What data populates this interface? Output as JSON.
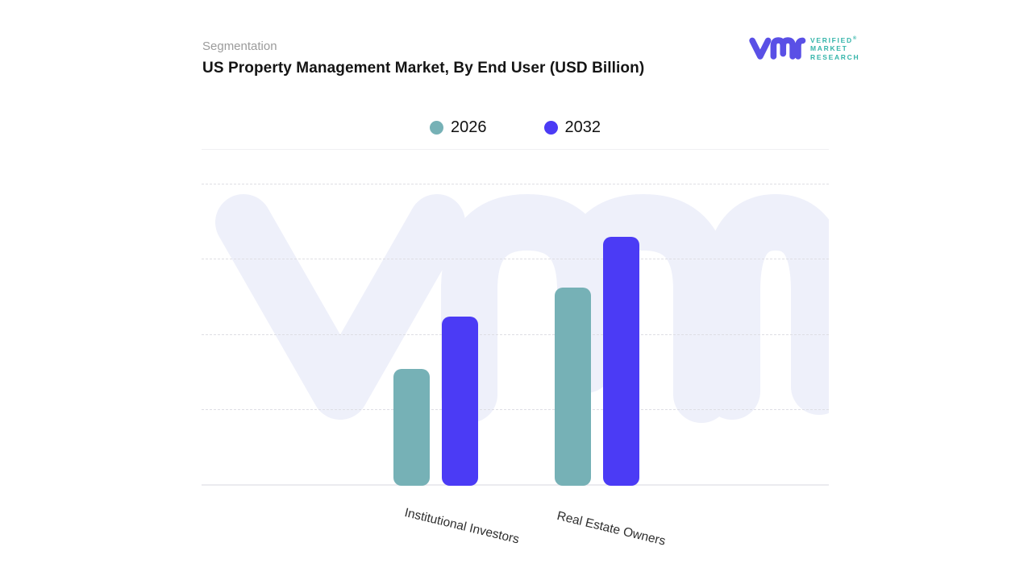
{
  "header": {
    "kicker": "Segmentation",
    "title": "US Property Management Market, By End User (USD Billion)"
  },
  "logo": {
    "brand_line_1": "VERIFIED",
    "brand_line_2": "MARKET",
    "brand_line_3": "RESEARCH",
    "registered_mark": "®",
    "mark_color": "#5a50e6",
    "text_color": "#35b5aa"
  },
  "chart_data": {
    "type": "bar",
    "title": "US Property Management Market, By End User (USD Billion)",
    "categories": [
      "Institutional Investors",
      "Real Estate Owners"
    ],
    "series": [
      {
        "name": "2026",
        "color": "#76b1b6",
        "values": [
          1.55,
          2.62
        ]
      },
      {
        "name": "2032",
        "color": "#4b3bf5",
        "values": [
          2.24,
          3.3
        ]
      }
    ],
    "xlabel": "",
    "ylabel": "",
    "ylim": [
      0,
      4
    ],
    "gridlines": [
      1,
      2,
      3,
      4
    ],
    "gridline_style": "dashed",
    "y_axis_labels_shown": false,
    "legend_position": "top-center",
    "note": "No numeric y-axis labels are displayed in the chart; values are estimated in gridline units (top dashed gridline = 4).",
    "watermark": "vmr"
  },
  "colors": {
    "background": "#ffffff",
    "kicker_text": "#9b9b9b",
    "title_text": "#141414",
    "watermark": "#eef0fa",
    "gridline": "#dedee4",
    "axis_line": "#ebebef",
    "xlabel_text": "#2e2e2e"
  }
}
